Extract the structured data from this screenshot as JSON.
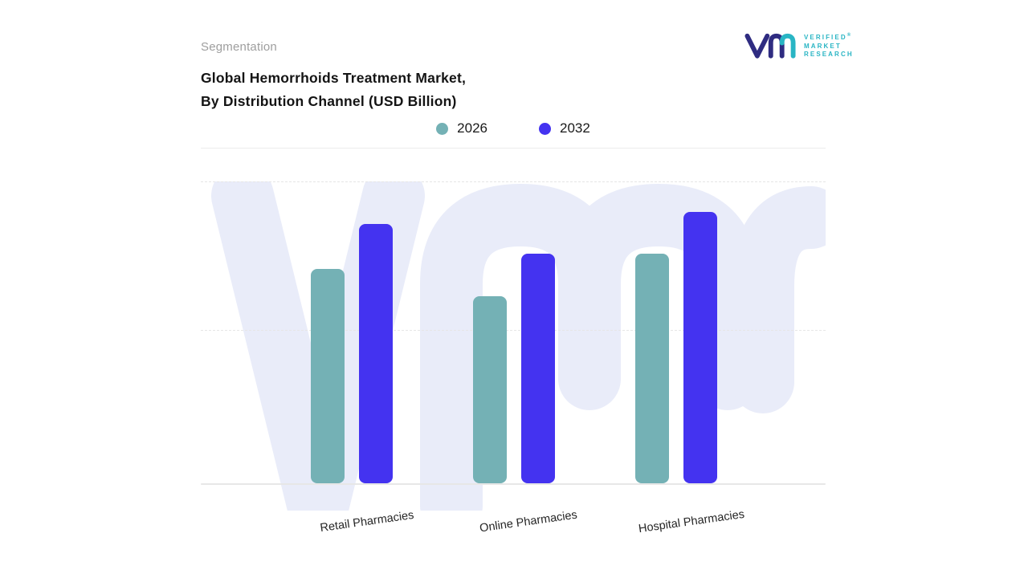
{
  "header": {
    "eyebrow": "Segmentation",
    "title_line1": "Global Hemorrhoids Treatment Market,",
    "title_line2": "By Distribution Channel (USD Billion)"
  },
  "brand": {
    "name_line1": "VERIFIED",
    "name_line2": "MARKET",
    "name_line3": "RESEARCH",
    "registered_mark": "®",
    "mark_primary_color": "#2f2c81",
    "mark_accent_color": "#29b5c4",
    "text_color": "#29b5c4"
  },
  "legend": [
    {
      "label": "2026",
      "color": "#74b1b5"
    },
    {
      "label": "2032",
      "color": "#4433f0"
    }
  ],
  "chart_data": {
    "type": "bar",
    "title": "Global Hemorrhoids Treatment Market, By Distribution Channel (USD Billion)",
    "categories": [
      "Retail Pharmacies",
      "Online Pharmacies",
      "Hospital Pharmacies"
    ],
    "series": [
      {
        "name": "2026",
        "color": "#74b1b5",
        "values": [
          71,
          62,
          76
        ]
      },
      {
        "name": "2032",
        "color": "#4433f0",
        "values": [
          86,
          76,
          90
        ]
      }
    ],
    "xlabel": "",
    "ylabel": "",
    "ylim": [
      0,
      100
    ],
    "value_axis_visible": false,
    "grid": "horizontal-dashed",
    "legend_position": "top-center",
    "watermark_text": "vmr"
  }
}
